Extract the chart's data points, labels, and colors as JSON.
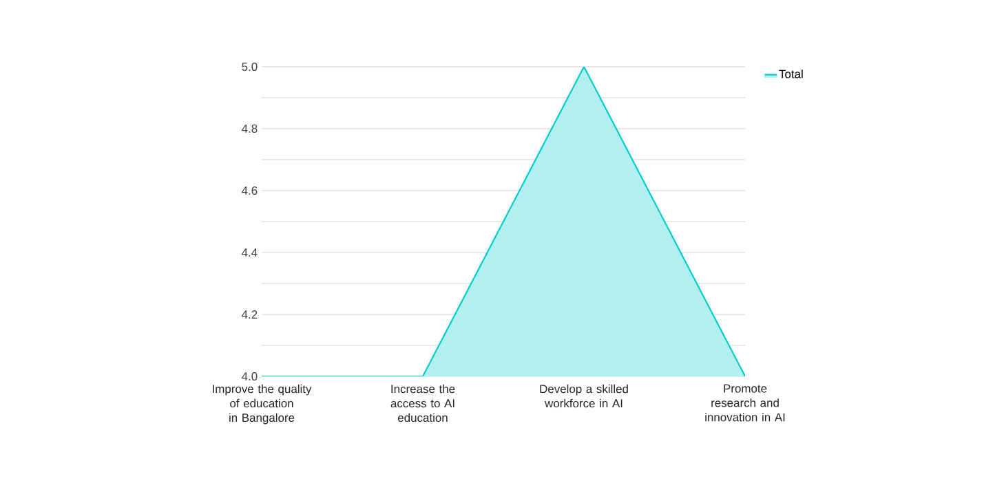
{
  "chart_data": {
    "type": "area",
    "categories": [
      "Improve the quality of education in Bangalore",
      "Increase the access to AI education",
      "Develop a skilled workforce in AI",
      "Promote research and innovation in AI"
    ],
    "series": [
      {
        "name": "Total",
        "color": "#00cccc",
        "values": [
          4,
          4,
          5,
          4
        ]
      }
    ],
    "ylim": [
      4,
      5
    ],
    "yticks": [
      {
        "value": 4,
        "label": "4.0"
      },
      {
        "value": 4.1,
        "label": null
      },
      {
        "value": 4.2,
        "label": "4.2"
      },
      {
        "value": 4.3,
        "label": null
      },
      {
        "value": 4.4,
        "label": "4.4"
      },
      {
        "value": 4.5,
        "label": null
      },
      {
        "value": 4.6,
        "label": "4.6"
      },
      {
        "value": 4.7,
        "label": null
      },
      {
        "value": 4.8,
        "label": "4.8"
      },
      {
        "value": 4.9,
        "label": null
      },
      {
        "value": 5,
        "label": "5.0"
      }
    ],
    "grid": "y",
    "legend": "top right"
  }
}
